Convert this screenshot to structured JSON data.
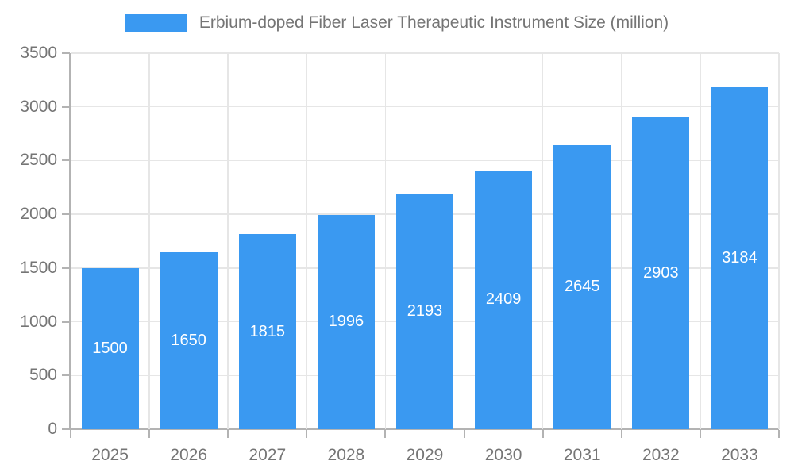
{
  "chart_data": {
    "type": "bar",
    "title": "Erbium-doped Fiber Laser Therapeutic Instrument Size (million)",
    "categories": [
      "2025",
      "2026",
      "2027",
      "2028",
      "2029",
      "2030",
      "2031",
      "2032",
      "2033"
    ],
    "values": [
      1500,
      1650,
      1815,
      1996,
      2193,
      2409,
      2645,
      2903,
      3184
    ],
    "xlabel": "",
    "ylabel": "",
    "ylim": [
      0,
      3500
    ],
    "yticks": [
      0,
      500,
      1000,
      1500,
      2000,
      2500,
      3000,
      3500
    ],
    "grid": true,
    "legend_position": "top",
    "colors": {
      "bar": "#3A99F1",
      "value_label": "#ffffff",
      "axis_text": "#757575",
      "gridline": "#e6e6e6",
      "axis_line": "#b3b3b3",
      "background": "#ffffff"
    }
  }
}
